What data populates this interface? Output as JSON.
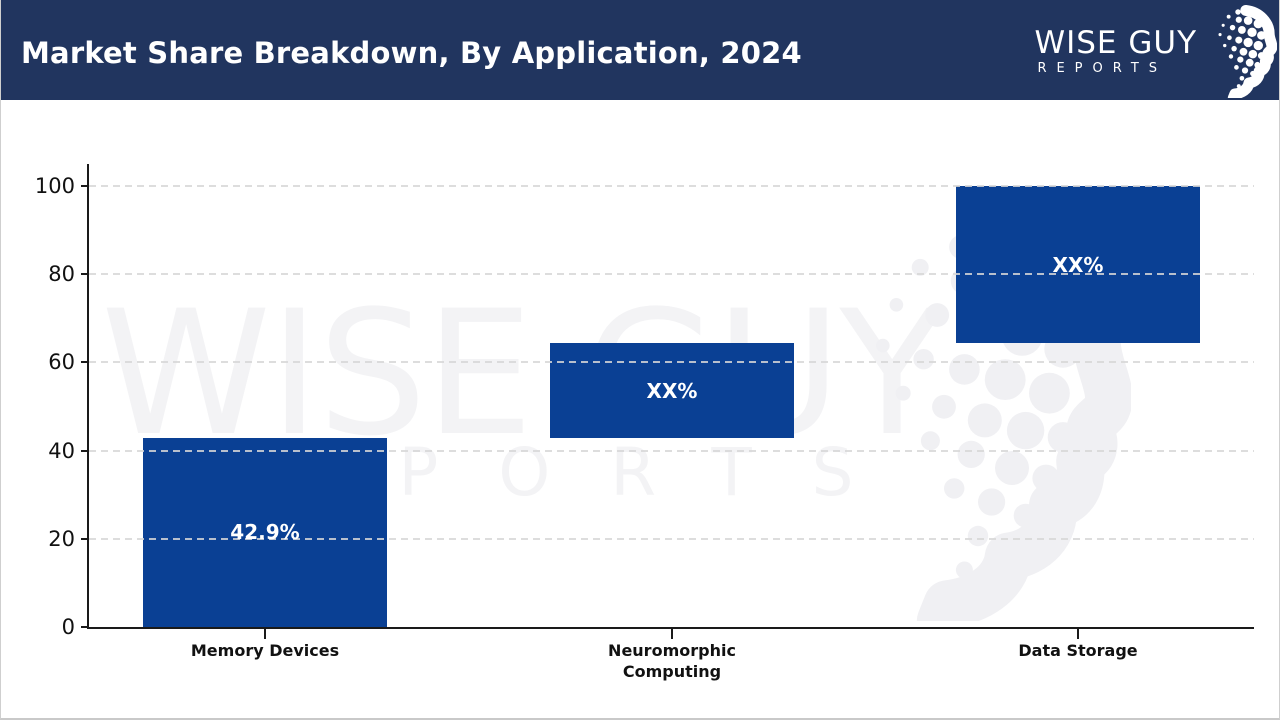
{
  "header": {
    "title": "Market Share Breakdown, By Application, 2024",
    "logo": {
      "wordmark": "WISE GUY",
      "subtext": "REPORTS"
    }
  },
  "watermark": {
    "line1": "WISE GUY",
    "line2": "REPORTS"
  },
  "chart_data": {
    "type": "bar",
    "subtype": "stepped-floating-segments (waterfall style)",
    "title": "Market Share Breakdown, By Application, 2024",
    "categories": [
      "Memory Devices",
      "Neuromorphic Computing",
      "Data Storage"
    ],
    "segments": [
      {
        "category": "Memory Devices",
        "start": 0,
        "end": 42.9,
        "label": "42.9%"
      },
      {
        "category": "Neuromorphic Computing",
        "start": 42.9,
        "end": 64.3,
        "label": "XX%"
      },
      {
        "category": "Data Storage",
        "start": 64.3,
        "end": 100,
        "label": "XX%"
      }
    ],
    "yticks": [
      0,
      20,
      40,
      60,
      80,
      100
    ],
    "ylim": [
      0,
      100
    ],
    "grid": "dashed-horizontal",
    "legend": "none",
    "bar_color": "#0a4094",
    "bar_label_color": "#ffffff"
  },
  "colors": {
    "header_bg": "#21355f",
    "title_text": "#ffffff",
    "axis": "#1a1a1a",
    "gridline": "#d7d7d7",
    "watermark": "#f2f2f4"
  }
}
